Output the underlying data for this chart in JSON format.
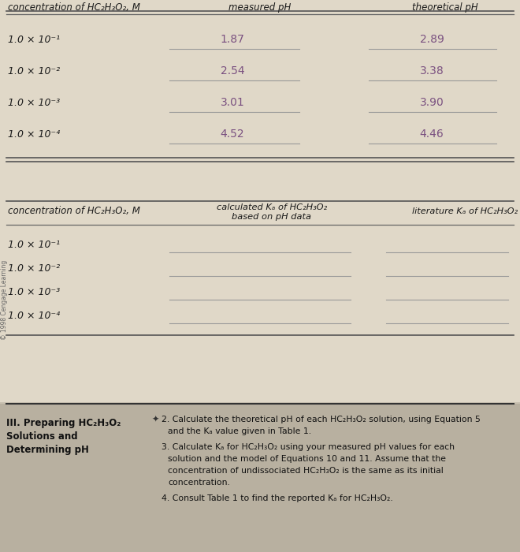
{
  "bg_color": "#c8c0b0",
  "paper_color": "#e0d8c8",
  "box_color": "#b8b0a0",
  "text_color": "#1a1a1a",
  "hand_color": "#7a5080",
  "line_color": "#888888",
  "figsize": [
    6.6,
    7.0
  ],
  "dpi": 100,
  "t1_header": [
    "concentration of HC₂H₃O₂, M",
    "measured pH",
    "theoretical pH"
  ],
  "t1_rows": [
    [
      "1.0 × 10⁻¹",
      "1.87",
      "2.89"
    ],
    [
      "1.0 × 10⁻²",
      "2.54",
      "3.38"
    ],
    [
      "1.0 × 10⁻³",
      "3.01",
      "3.90"
    ],
    [
      "1.0 × 10⁻⁴",
      "4.52",
      "4.46"
    ]
  ],
  "t2_col1_header": "concentration of HC₂H₃O₂, M",
  "t2_col2_header_line1": "calculated Kₐ of HC₂H₃O₂",
  "t2_col2_header_line2": "based on pH data",
  "t2_col3_header": "literature Kₐ of HC₂H₃O₂",
  "t2_rows": [
    "1.0 × 10⁻¹",
    "1.0 × 10⁻²",
    "1.0 × 10⁻³",
    "1.0 × 10⁻⁴"
  ],
  "section_title_lines": [
    "III. Preparing HC₂H₃O₂",
    "Solutions and",
    "Determining pH"
  ],
  "copyright": "© 1998 Cengage Learning"
}
